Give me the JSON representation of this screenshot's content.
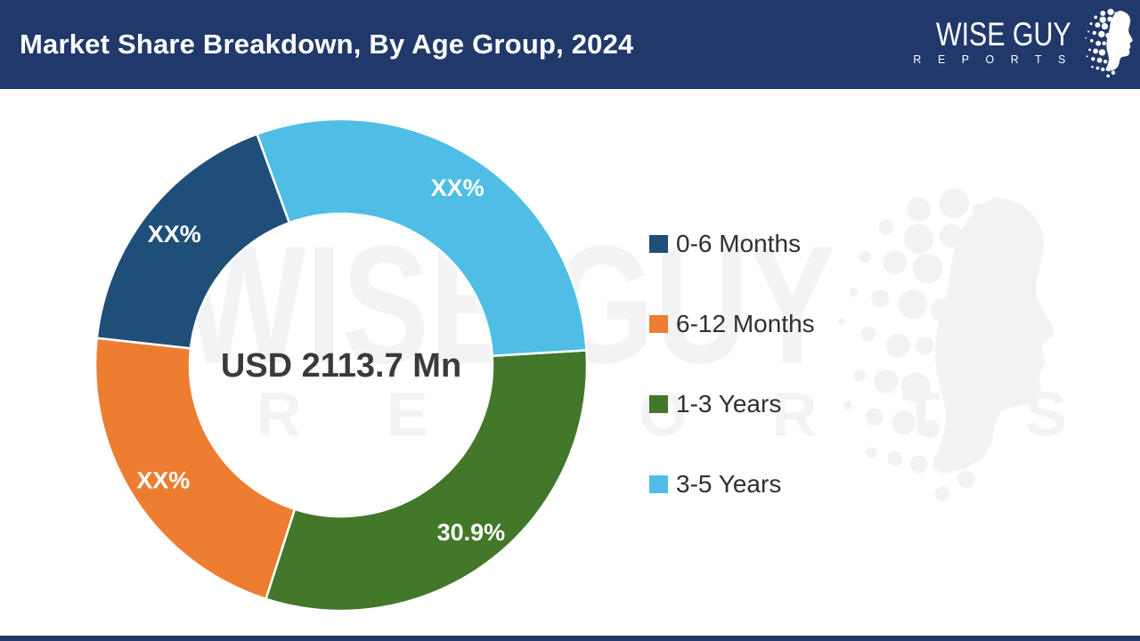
{
  "header": {
    "title": "Market Share Breakdown, By Age Group, 2024",
    "bg_color": "#21386B",
    "logo": {
      "line1": "WISE GUY",
      "line2": "R E P O R T S"
    }
  },
  "watermark": {
    "line1": "WISE GUY",
    "line2": "R E P O R T S"
  },
  "chart_data": {
    "type": "pie",
    "subtype": "donut",
    "title": "Market Share Breakdown, By Age Group, 2024",
    "center_label": "USD 2113.7 Mn",
    "start_angle_deg": 110,
    "direction": "counterclockwise",
    "legend_position": "right",
    "inner_radius_ratio": 0.62,
    "segments": [
      {
        "name": "0-6 Months",
        "value_pct": 17.7,
        "label": "XX%",
        "color": "#1F4E79"
      },
      {
        "name": "6-12 Months",
        "value_pct": 21.8,
        "label": "XX%",
        "color": "#ED7D31"
      },
      {
        "name": "1-3 Years",
        "value_pct": 30.9,
        "label": "30.9%",
        "color": "#43772A"
      },
      {
        "name": "3-5 Years",
        "value_pct": 29.6,
        "label": "XX%",
        "color": "#4FBEE6"
      }
    ]
  },
  "footer": {
    "bar_color": "#21386B"
  }
}
